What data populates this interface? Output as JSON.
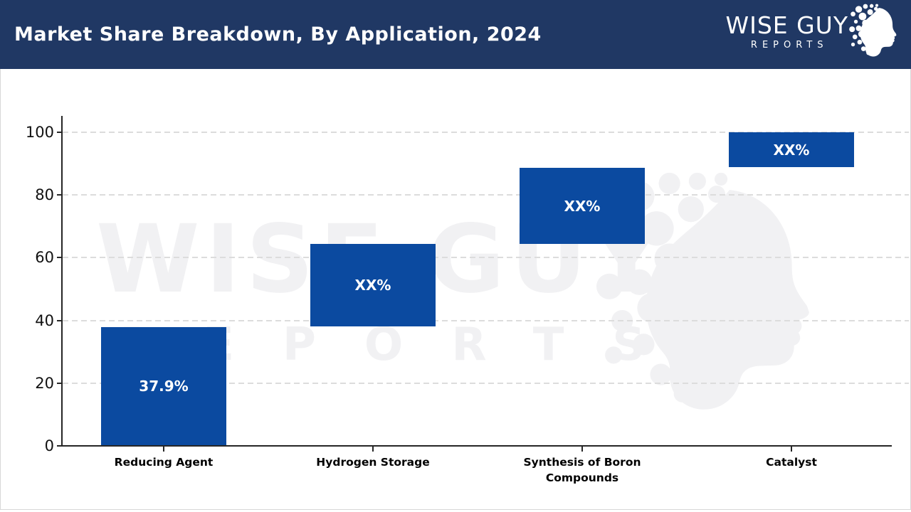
{
  "header": {
    "title": "Market Share Breakdown, By Application, 2024",
    "bg_color": "#203864",
    "logo": {
      "line1": "WISE GUY",
      "line2": "REPORTS"
    }
  },
  "watermark": {
    "line1": "WISE GUY",
    "line2": "REPORTS"
  },
  "chart_data": {
    "type": "bar",
    "variant": "floating-waterfall",
    "title": "Market Share Breakdown, By Application, 2024",
    "categories": [
      "Reducing Agent",
      "Hydrogen Storage",
      "Synthesis of Boron Compounds",
      "Catalyst"
    ],
    "series": [
      {
        "name": "Market share (%)",
        "segments": [
          {
            "category": "Reducing Agent",
            "start": 0,
            "end": 37.9,
            "label": "37.9%"
          },
          {
            "category": "Hydrogen Storage",
            "start": 38,
            "end": 64.3,
            "label": "XX%"
          },
          {
            "category": "Synthesis of Boron Compounds",
            "start": 64.4,
            "end": 88.6,
            "label": "XX%"
          },
          {
            "category": "Catalyst",
            "start": 88.8,
            "end": 100,
            "label": "XX%"
          }
        ]
      }
    ],
    "xlabel": "",
    "ylabel": "",
    "ylim": [
      0,
      105
    ],
    "yticks": [
      0,
      20,
      40,
      60,
      80,
      100
    ],
    "grid": "horizontal-dashed",
    "legend_position": "none",
    "bar_color": "#0b4aa0",
    "bar_label_color": "#ffffff",
    "axis_color": "#262626",
    "gridline_color": "#dcdcdc"
  }
}
